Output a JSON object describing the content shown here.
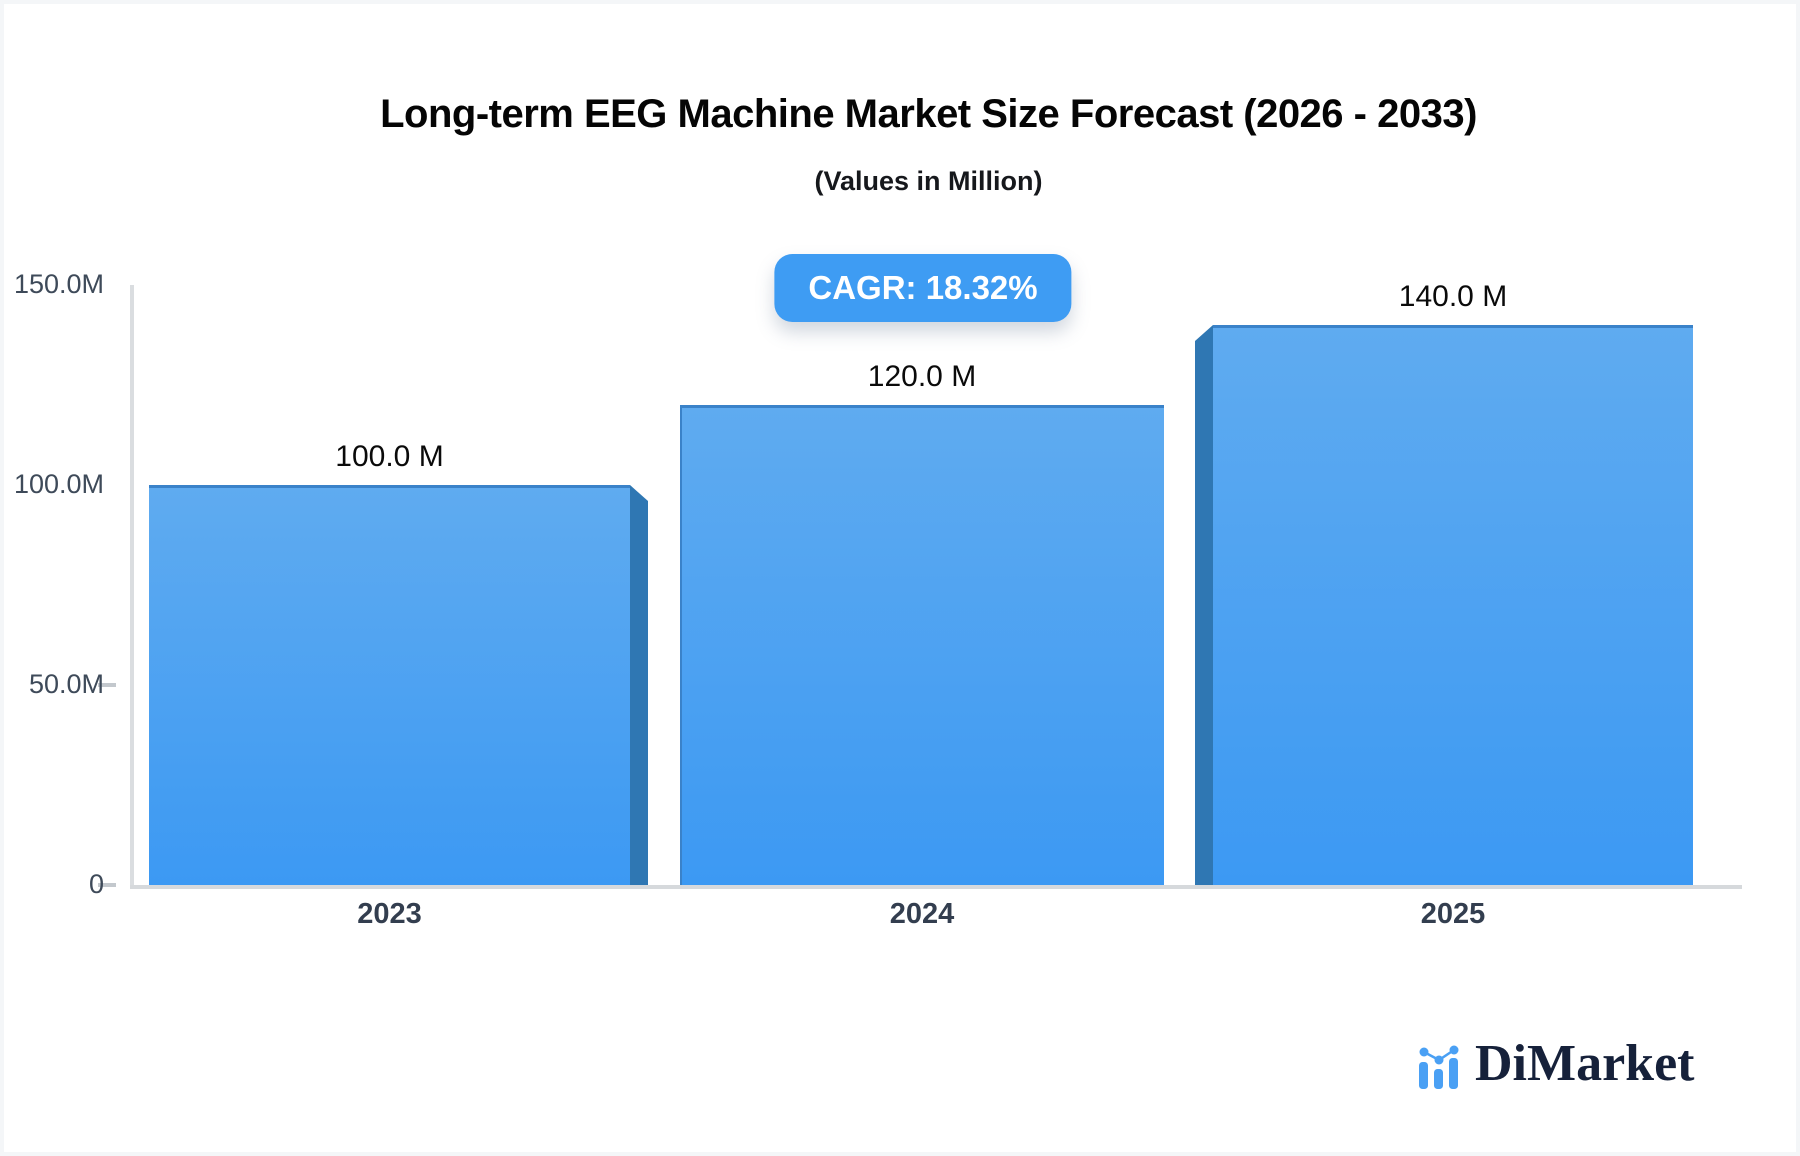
{
  "header": {
    "title": "Long-term EEG Machine Market Size Forecast (2026 - 2033)",
    "subtitle": "(Values in Million)",
    "cagr_badge": "CAGR: 18.32%"
  },
  "chart_data": {
    "type": "bar",
    "title": "Long-term EEG Machine Market Size Forecast (2026 - 2033)",
    "subtitle": "(Values in Million)",
    "cagr_percent": 18.32,
    "categories": [
      "2023",
      "2024",
      "2025"
    ],
    "values": [
      100,
      120,
      140
    ],
    "bar_labels": [
      "100.0 M",
      "120.0 M",
      "140.0 M"
    ],
    "unit": "Million",
    "y_axis": {
      "min": 0,
      "max": 150,
      "ticks": [
        {
          "label": "0",
          "value": 0,
          "dash": true
        },
        {
          "label": "50.0M",
          "value": 50,
          "dash": true
        },
        {
          "label": "100.0M",
          "value": 100,
          "dash": false
        },
        {
          "label": "150.0M",
          "value": 150,
          "dash": false
        }
      ]
    },
    "grid": "off",
    "legend": "none",
    "bar_color_top": "#5fabf0",
    "bar_color_bottom": "#3c99f3",
    "bar_side_color": "#2f77b3"
  },
  "colors": {
    "accent_blue": "#3e9cf3",
    "axis_line": "#d6d9dc",
    "axis_text": "#3e4a59",
    "value_text": "#0a0a0a",
    "logo_navy": "#16213a",
    "logo_blue": "#4aa0f4"
  },
  "logo": {
    "text": "DiMarket",
    "icon": "mini-bar-line-chart-icon"
  }
}
